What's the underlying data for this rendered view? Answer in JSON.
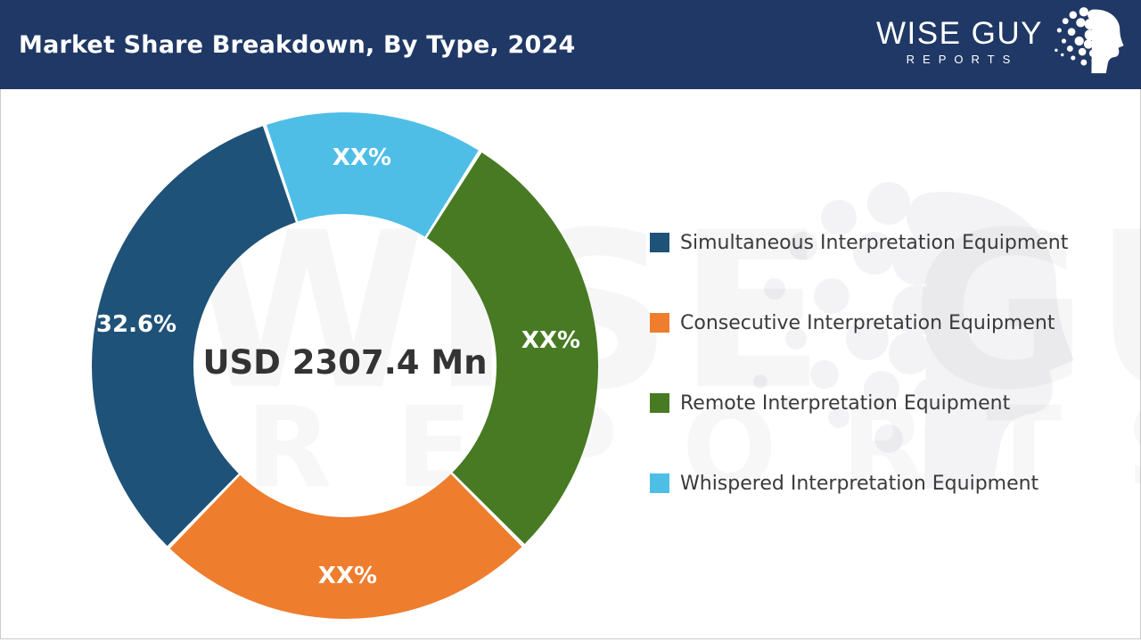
{
  "header": {
    "title": "Market Share Breakdown, By Type, 2024",
    "brand_name": "WISE GUY",
    "brand_sub": "REPORTS",
    "bg_color": "#1F3866"
  },
  "watermark": {
    "line1": "WISE GUY",
    "line2": "REPORTS"
  },
  "chart_data": {
    "type": "pie",
    "subtype": "donut",
    "title": "Market Share Breakdown, By Type, 2024",
    "center_label": "USD 2307.4 Mn",
    "legend_position": "right",
    "start_angle_deg": -18.5,
    "segments": [
      {
        "label": "Simultaneous Interpretation Equipment",
        "display_value": "32.6%",
        "value_pct": 32.6,
        "color": "#1F5278"
      },
      {
        "label": "Consecutive Interpretation Equipment",
        "display_value": "XX%",
        "value_pct": 24.7,
        "color": "#EE7D2E"
      },
      {
        "label": "Remote Interpretation Equipment",
        "display_value": "XX%",
        "value_pct": 28.6,
        "color": "#477A23"
      },
      {
        "label": "Whispered Interpretation Equipment",
        "display_value": "XX%",
        "value_pct": 14.1,
        "color": "#4FBEE7"
      }
    ]
  }
}
